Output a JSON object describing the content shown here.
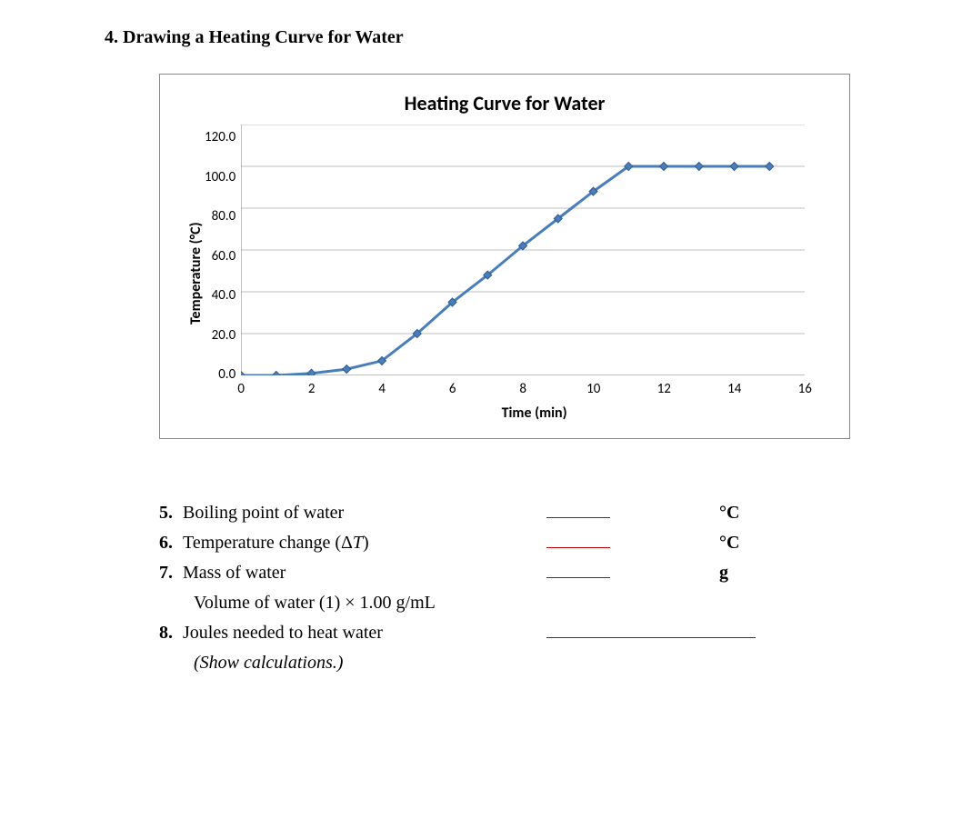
{
  "section4": {
    "number": "4.",
    "title": "Drawing a Heating Curve for Water"
  },
  "chart": {
    "type": "line",
    "title": "Heating Curve for Water",
    "title_fontsize": 22,
    "title_font": "Calibri",
    "xlabel": "Time (min)",
    "ylabel": "Temperature (°C)",
    "label_fontsize": 16,
    "tick_fontsize": 15,
    "background_color": "#ffffff",
    "border_color": "#888888",
    "grid_color": "#bfbfbf",
    "axis_color": "#808080",
    "line_color": "#4a7ebb",
    "line_width": 3,
    "marker_style": "diamond",
    "marker_size": 9,
    "marker_color": "#4a7ebb",
    "xlim": [
      0,
      16
    ],
    "ylim": [
      0,
      120
    ],
    "x_ticks": [
      0,
      2,
      4,
      6,
      8,
      10,
      12,
      14,
      16
    ],
    "y_ticks": [
      "0.0",
      "20.0",
      "40.0",
      "60.0",
      "80.0",
      "100.0",
      "120.0"
    ],
    "series": {
      "x": [
        0,
        1,
        2,
        3,
        4,
        5,
        6,
        7,
        8,
        9,
        10,
        11,
        12,
        13,
        14,
        15
      ],
      "y": [
        0,
        0,
        1,
        3,
        7,
        20,
        35,
        48,
        62,
        75,
        88,
        100,
        100,
        100,
        100,
        100
      ]
    }
  },
  "questions": {
    "q5": {
      "number": "5.",
      "text": "Boiling point of water",
      "unit": "°C",
      "blank_color": "#c00000"
    },
    "q6": {
      "number": "6.",
      "text": "Temperature change (Δ",
      "text_italic": "T",
      "text_after": ")",
      "unit": "°C",
      "blank_color": "#c00000"
    },
    "q7": {
      "number": "7.",
      "text": "Mass of water",
      "unit": "g",
      "blank_color": "#c00000",
      "sub": "Volume of water (1) × 1.00 g/mL"
    },
    "q8": {
      "number": "8.",
      "text": "Joules needed to heat water",
      "blank_color": "#c00000",
      "sub": "(Show calculations.)",
      "sub_italic": true
    }
  }
}
